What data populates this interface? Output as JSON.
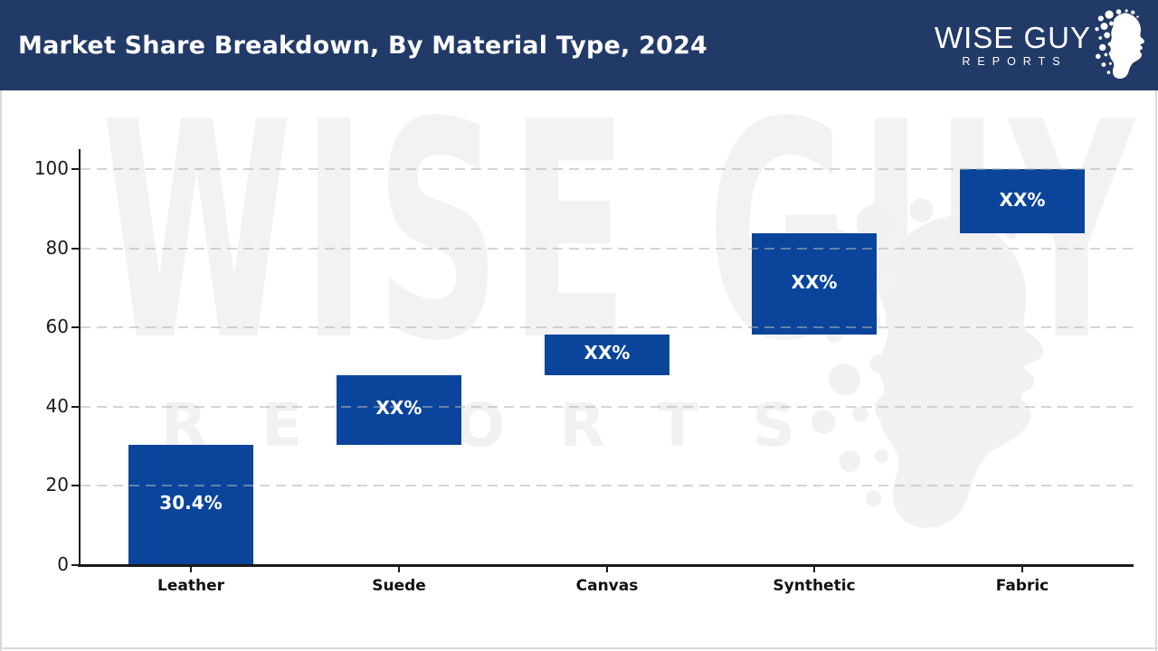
{
  "header": {
    "title": "Market Share Breakdown, By Material Type, 2024",
    "logo": {
      "wordmark": "WISE GUY",
      "subtext": "REPORTS"
    }
  },
  "watermark": {
    "wordmark": "WISE GUY",
    "subtext": "REPORTS"
  },
  "chart_data": {
    "type": "bar",
    "subtype": "waterfall",
    "title": "Market Share Breakdown, By Material Type, 2024",
    "categories": [
      "Leather",
      "Suede",
      "Canvas",
      "Synthetic",
      "Fabric"
    ],
    "series": [
      {
        "name": "Market share (%)",
        "segments": [
          {
            "category": "Leather",
            "start": 0,
            "end": 30.4,
            "label": "30.4%"
          },
          {
            "category": "Suede",
            "start": 30.4,
            "end": 48.0,
            "label": "XX%"
          },
          {
            "category": "Canvas",
            "start": 48.0,
            "end": 58.3,
            "label": "XX%"
          },
          {
            "category": "Synthetic",
            "start": 58.3,
            "end": 83.7,
            "label": "XX%"
          },
          {
            "category": "Fabric",
            "start": 83.7,
            "end": 100.0,
            "label": "XX%"
          }
        ]
      }
    ],
    "xlabel": "",
    "ylabel": "",
    "yticks": [
      0,
      20,
      40,
      60,
      80,
      100
    ],
    "ylim": [
      0,
      105
    ],
    "grid": "horizontal-dashed",
    "legend": "none",
    "colors": {
      "bar": "#0a459b",
      "bar_label": "#ffffff",
      "axis": "#1a1a1a",
      "grid": "#d8d8d8",
      "header_bg": "#223a67",
      "watermark": "#f1f1f1"
    }
  }
}
